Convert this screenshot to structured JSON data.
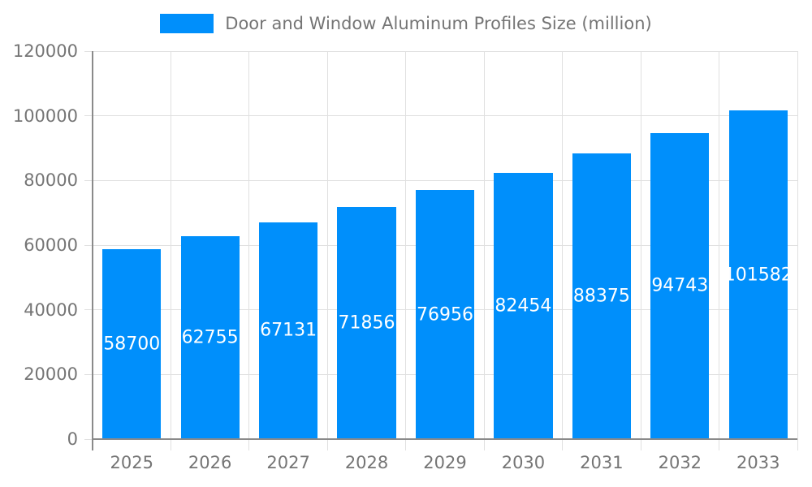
{
  "legend": {
    "label": "Door and Window Aluminum Profiles Size (million)",
    "swatch_color": "#008FFB"
  },
  "chart_data": {
    "type": "bar",
    "title": "Door and Window Aluminum Profiles Size (million)",
    "categories": [
      "2025",
      "2026",
      "2027",
      "2028",
      "2029",
      "2030",
      "2031",
      "2032",
      "2033"
    ],
    "series": [
      {
        "name": "Door and Window Aluminum Profiles Size (million)",
        "values": [
          58700,
          62755,
          67131,
          71856,
          76956,
          82454,
          88375,
          94743,
          101582
        ]
      }
    ],
    "bar_labels": [
      "58700",
      "62755",
      "67131",
      "71856",
      "76956",
      "82454",
      "88375",
      "94743",
      "101582"
    ],
    "xlabel": "",
    "ylabel": "",
    "ylim": [
      0,
      120000
    ],
    "yticks": [
      0,
      20000,
      40000,
      60000,
      80000,
      100000,
      120000
    ],
    "ytick_labels": [
      "0",
      "20000",
      "40000",
      "60000",
      "80000",
      "100000",
      "120000"
    ],
    "grid": true,
    "legend_position": "top-center",
    "colors": {
      "bar": "#008FFB",
      "bar_label": "#ffffff",
      "axis_text": "#757575",
      "grid_line": "#e0e0e0",
      "axis_line": "#8a8a8a",
      "background": "#ffffff"
    }
  }
}
